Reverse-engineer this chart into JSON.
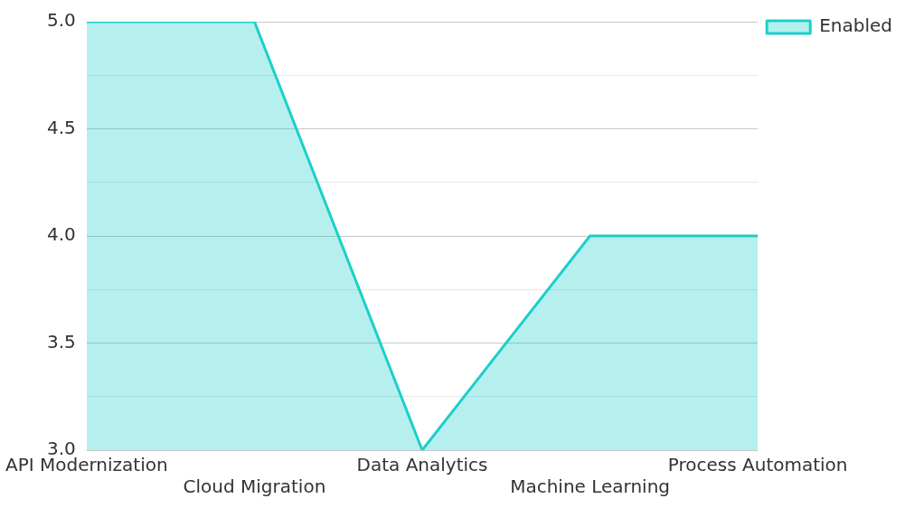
{
  "chart_data": {
    "type": "area",
    "categories": [
      "API Modernization",
      "Cloud Migration",
      "Data Analytics",
      "Machine Learning",
      "Process Automation"
    ],
    "series": [
      {
        "name": "Enabled",
        "color": "#1ccfc9",
        "values": [
          5,
          5,
          3,
          4,
          4
        ]
      }
    ],
    "ylim": [
      3,
      5
    ],
    "yticks": [
      {
        "value": 3,
        "label": "3.0"
      },
      {
        "value": 3.25,
        "label": null
      },
      {
        "value": 3.5,
        "label": "3.5"
      },
      {
        "value": 3.75,
        "label": null
      },
      {
        "value": 4,
        "label": "4.0"
      },
      {
        "value": 4.25,
        "label": null
      },
      {
        "value": 4.5,
        "label": "4.5"
      },
      {
        "value": 4.75,
        "label": null
      },
      {
        "value": 5,
        "label": "5.0"
      }
    ],
    "grid": "y",
    "legend": "top right",
    "marker": "none",
    "line_style": "solid"
  }
}
